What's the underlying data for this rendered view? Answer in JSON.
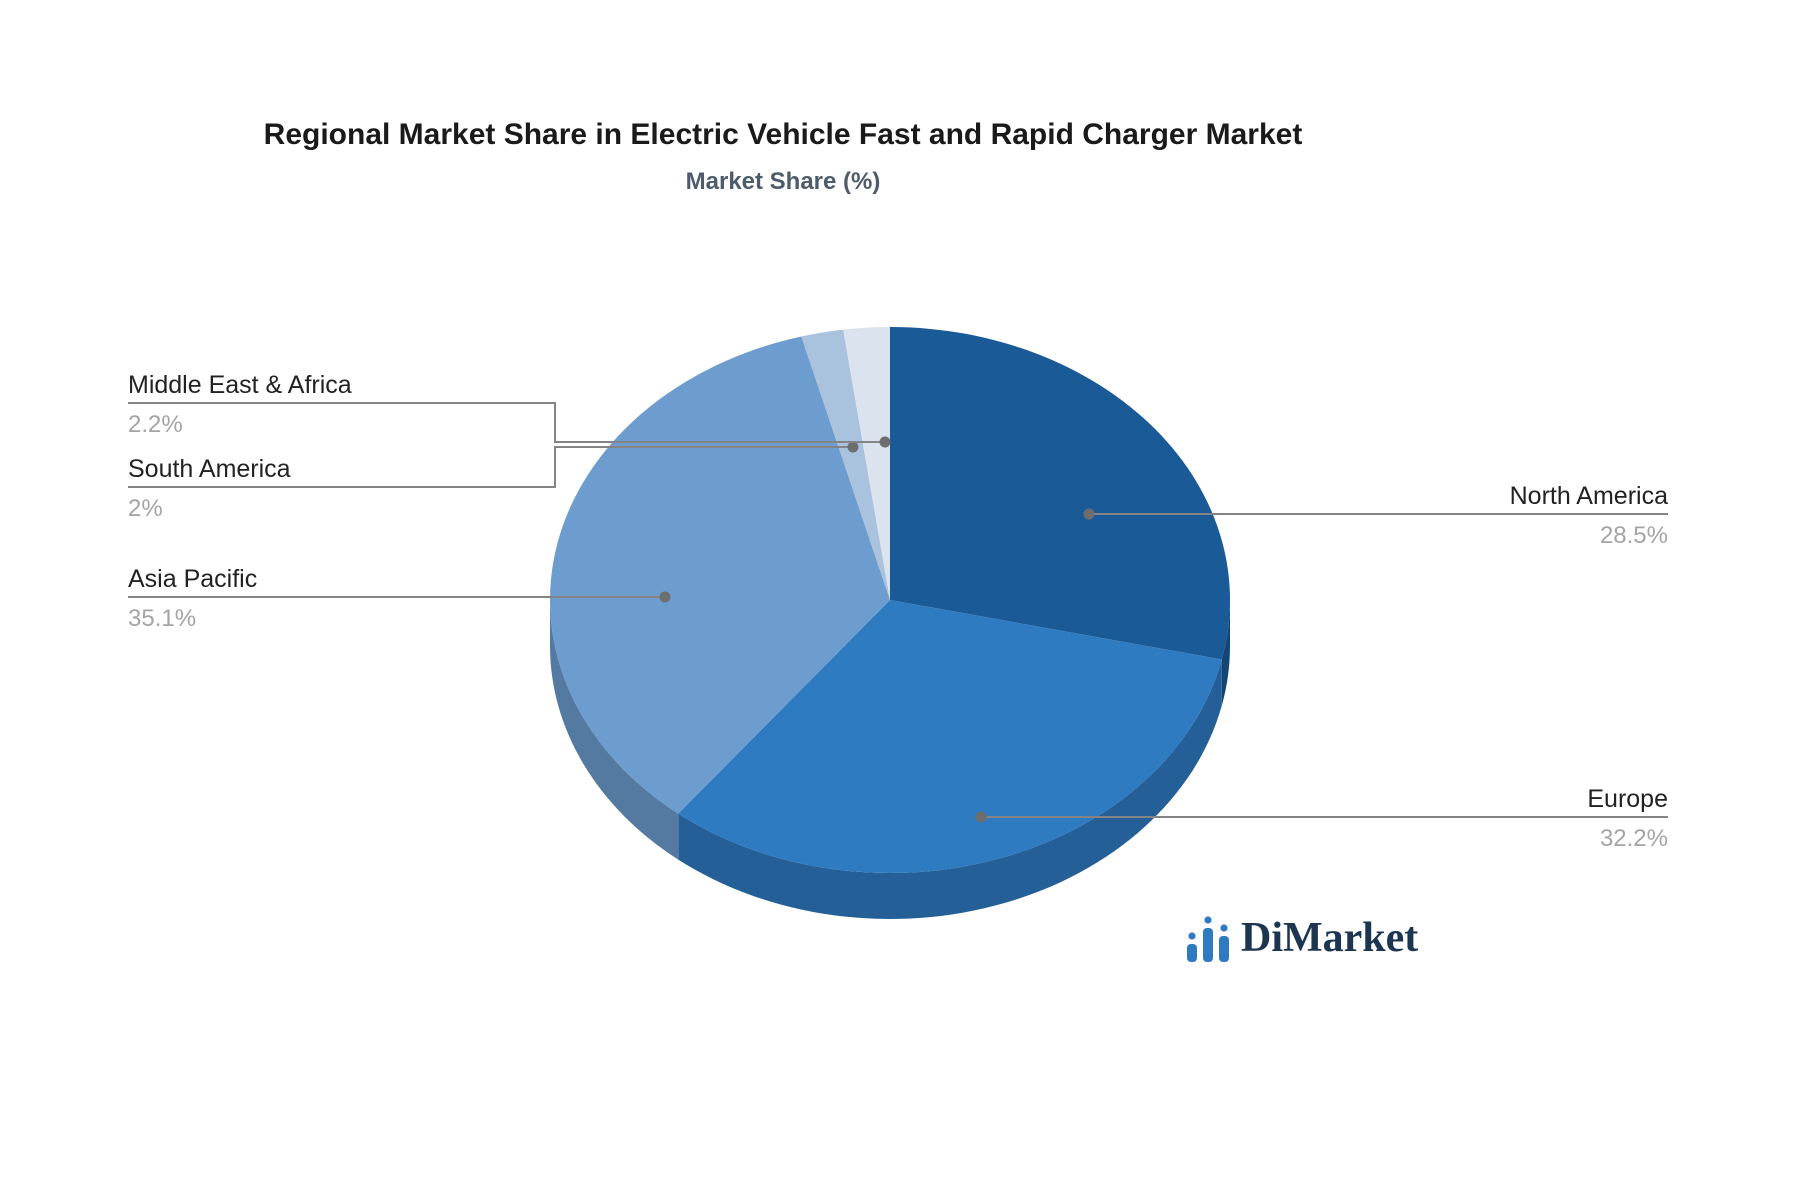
{
  "title": "Regional Market Share in Electric Vehicle Fast and Rapid Charger Market",
  "subtitle": "Market Share (%)",
  "logo": {
    "text": "DiMarket"
  },
  "chart_data": {
    "type": "pie",
    "title": "Regional Market Share in Electric Vehicle Fast and Rapid Charger Market",
    "subtitle": "Market Share (%)",
    "unit": "%",
    "style": "3d-pie",
    "start_angle_deg_from_12_oclock": 0,
    "direction": "clockwise",
    "legend_position": "callout-labels",
    "slices": [
      {
        "label": "North America",
        "value": 28.5,
        "display": "28.5%",
        "color": "#1a5a96"
      },
      {
        "label": "Europe",
        "value": 32.2,
        "display": "32.2%",
        "color": "#2e7bc1"
      },
      {
        "label": "Asia Pacific",
        "value": 35.1,
        "display": "35.1%",
        "color": "#6d9cce"
      },
      {
        "label": "South America",
        "value": 2,
        "display": "2%",
        "color": "#a9c3de"
      },
      {
        "label": "Middle East & Africa",
        "value": 2.2,
        "display": "2.2%",
        "color": "#dbe3ee"
      }
    ],
    "connector_color": "#848484",
    "label_name_color": "#222222",
    "label_value_color": "#a4a4a4"
  }
}
